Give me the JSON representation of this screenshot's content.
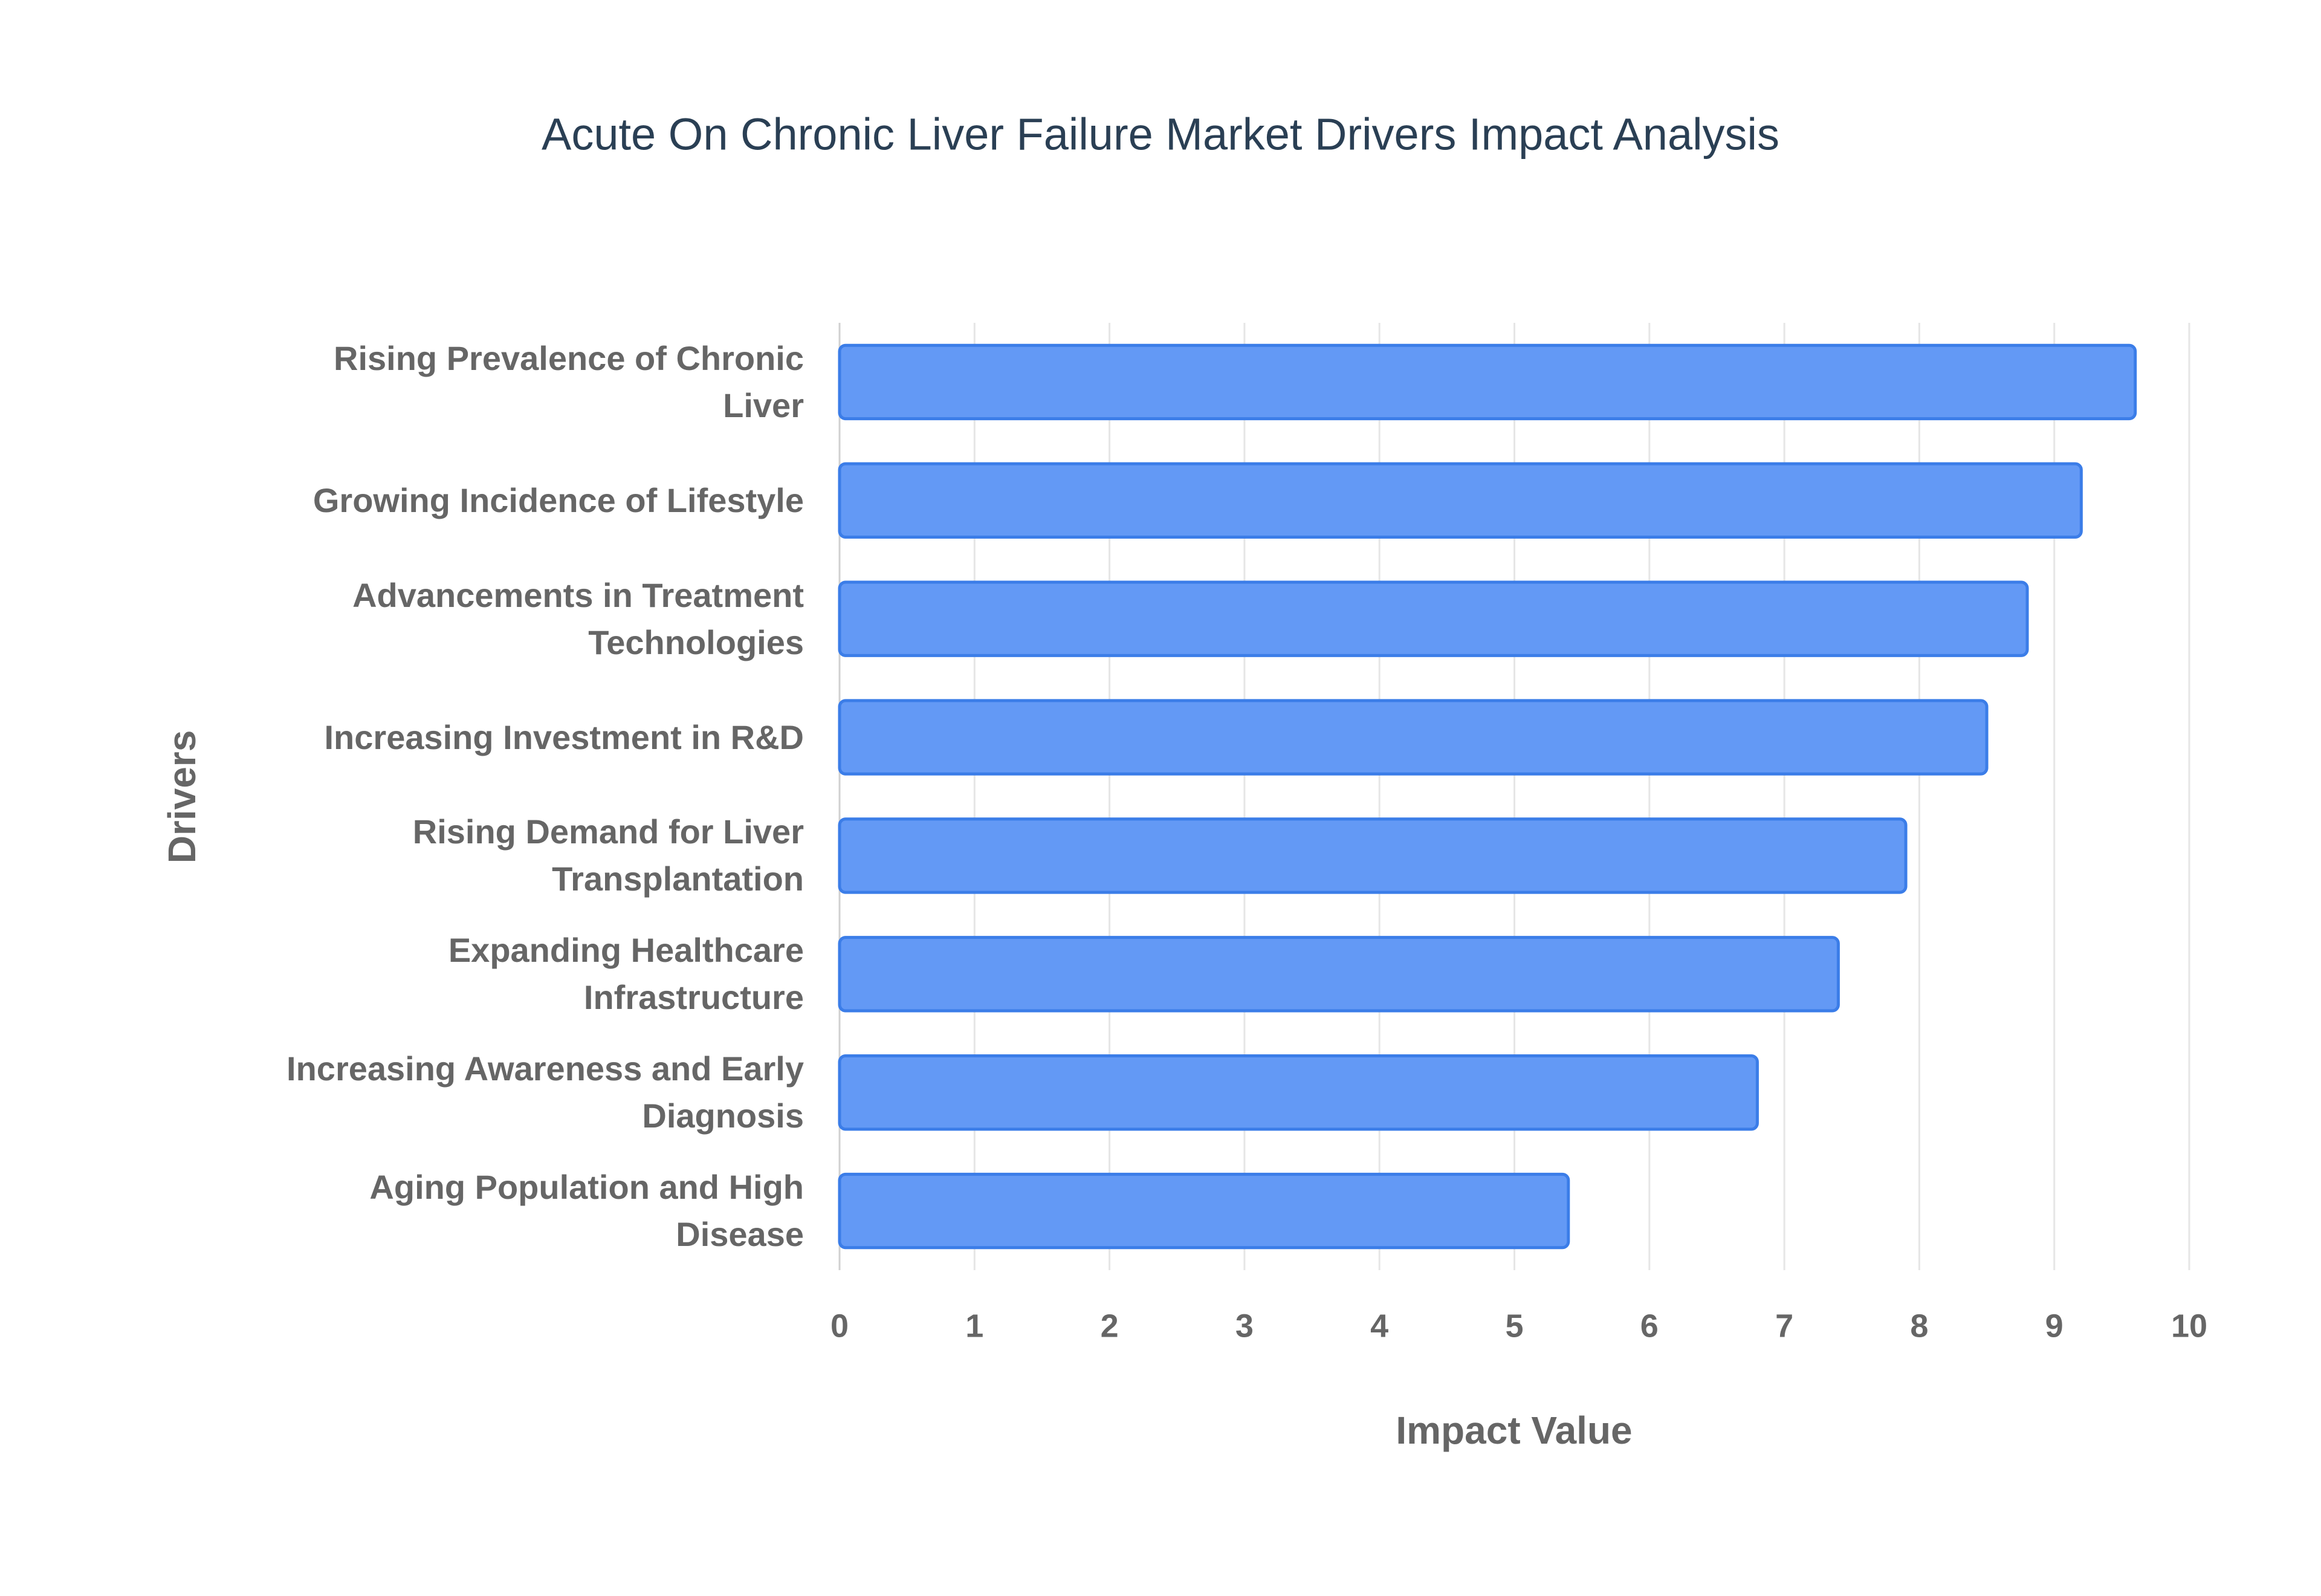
{
  "chart_data": {
    "type": "bar",
    "orientation": "horizontal",
    "title": "Acute On Chronic Liver Failure Market Drivers Impact Analysis",
    "x_label": "Impact Value",
    "y_label": "Drivers",
    "categories": [
      "Rising Prevalence of Chronic Liver",
      "Growing Incidence of Lifestyle",
      "Advancements in Treatment Technologies",
      "Increasing Investment in R&D",
      "Rising Demand for Liver Transplantation",
      "Expanding Healthcare Infrastructure",
      "Increasing Awareness and Early Diagnosis",
      "Aging Population and High Disease"
    ],
    "values": [
      9.6,
      9.2,
      8.8,
      8.5,
      7.9,
      7.4,
      6.8,
      5.4
    ],
    "color": "#6399f5",
    "border_color": "#3b7de8",
    "xlim": [
      0,
      10
    ],
    "xticks": [
      0,
      1,
      2,
      3,
      4,
      5,
      6,
      7,
      8,
      9,
      10
    ],
    "grid": true
  }
}
